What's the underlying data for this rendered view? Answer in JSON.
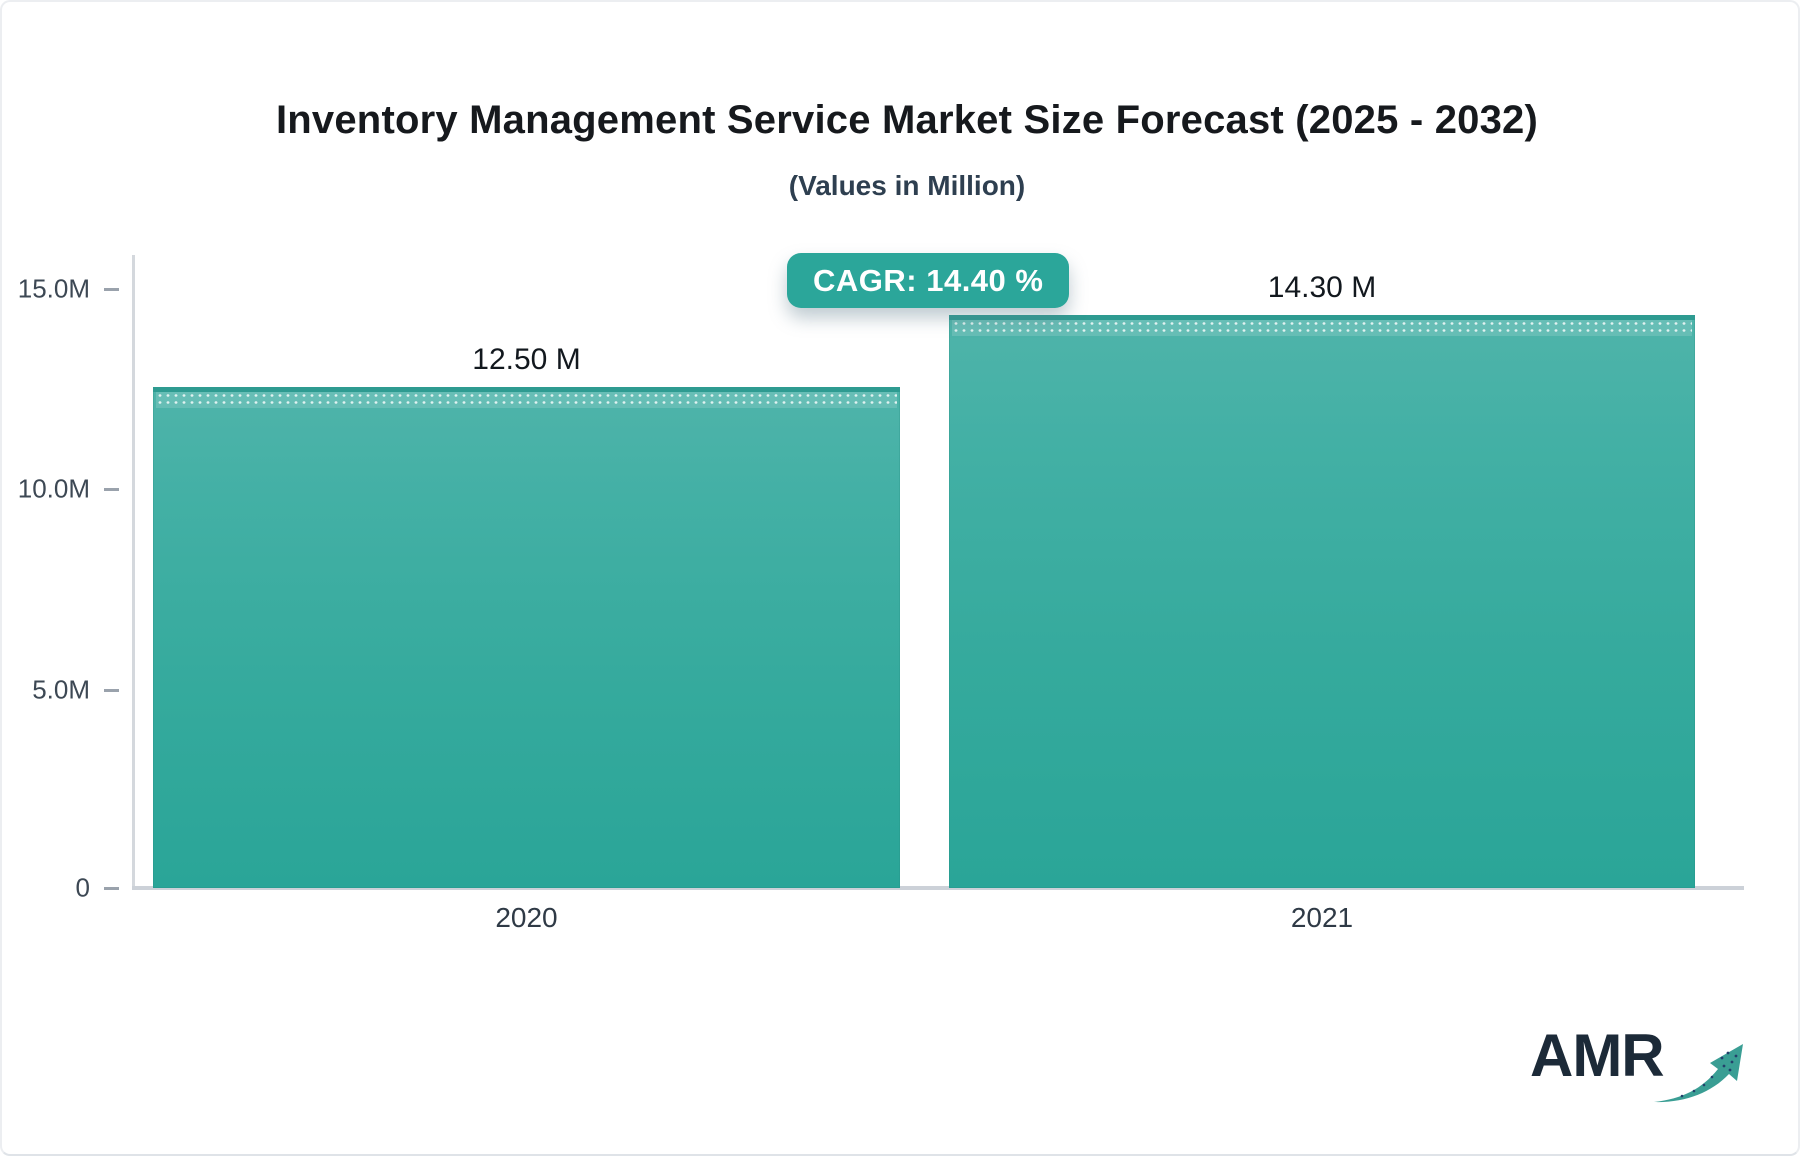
{
  "chart_data": {
    "type": "bar",
    "title": "Inventory Management Service Market Size Forecast (2025 - 2032)",
    "subtitle": "(Values in Million)",
    "categories": [
      "2020",
      "2021"
    ],
    "values": [
      12.5,
      14.3
    ],
    "value_labels": [
      "12.50 M",
      "14.30 M"
    ],
    "unit": "Million",
    "ylim": [
      0,
      15
    ],
    "y_tick_labels": [
      "15.0M",
      "10.0M",
      "5.0M",
      "0"
    ],
    "grid": "off",
    "legend": "none",
    "annotation": {
      "cagr_label": "CAGR: 14.40 %"
    },
    "colors": {
      "bar_top": "#4fb4aa",
      "bar_bottom": "#2aa598",
      "bar_cap": "#2e9b91",
      "badge": "#2ba69a",
      "axis_line": "#ccd1d8",
      "tick_text": "#3d4854"
    }
  },
  "branding": {
    "logo_text": "AMR",
    "arrow_color": "#3a9e94"
  }
}
